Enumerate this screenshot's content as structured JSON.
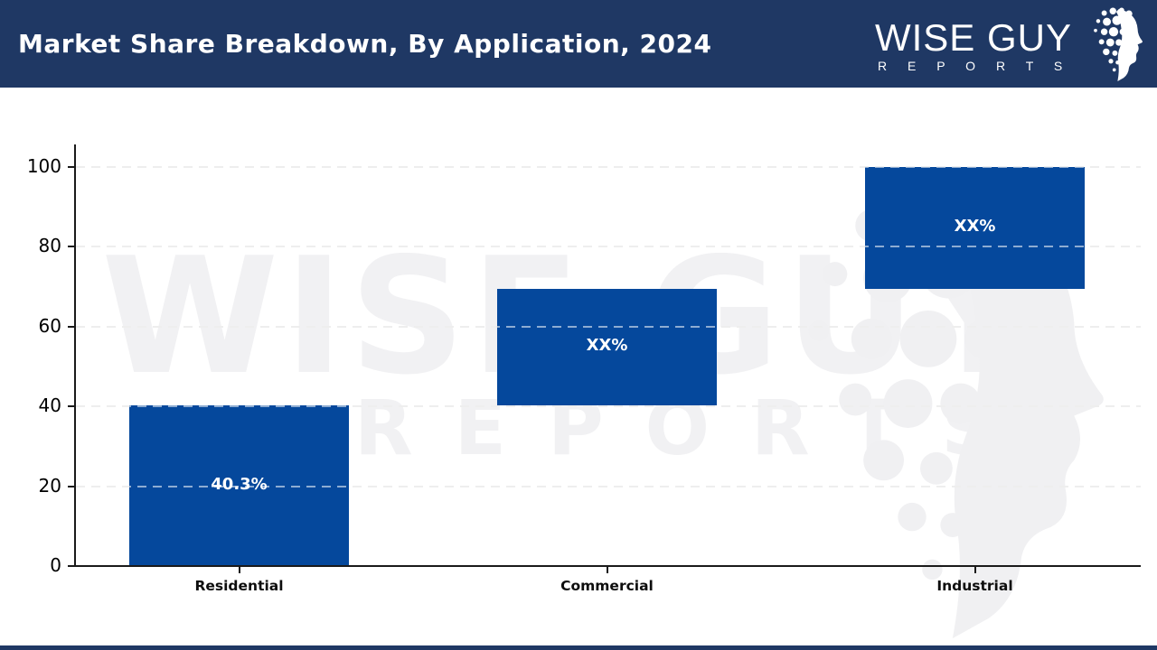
{
  "header": {
    "title": "Market Share Breakdown, By Application, 2024",
    "bg_color": "#1f3864",
    "logo": {
      "wordmark": "WISE GUY",
      "subtext": "R E P O R T S"
    }
  },
  "watermark": {
    "line1": "WISE GUY",
    "line2": "REPORTS"
  },
  "chart_data": {
    "type": "bar",
    "variant": "floating-segment-waterfall",
    "title": "Market Share Breakdown, By Application, 2024",
    "categories": [
      "Residential",
      "Commercial",
      "Industrial"
    ],
    "segments": [
      {
        "category": "Residential",
        "start": 0,
        "end": 40.3,
        "label": "40.3%"
      },
      {
        "category": "Commercial",
        "start": 40.3,
        "end": 69.5,
        "label": "XX%"
      },
      {
        "category": "Industrial",
        "start": 69.5,
        "end": 100,
        "label": "XX%"
      }
    ],
    "y_ticks": [
      0,
      20,
      40,
      60,
      80,
      100
    ],
    "ylim": [
      0,
      105
    ],
    "xlabel": "",
    "ylabel": "",
    "grid": "horizontal-dashed",
    "legend": "none",
    "bar_color": "#05489c",
    "bar_label_color": "#ffffff"
  },
  "footer": {
    "bar_color": "#1f3864"
  }
}
